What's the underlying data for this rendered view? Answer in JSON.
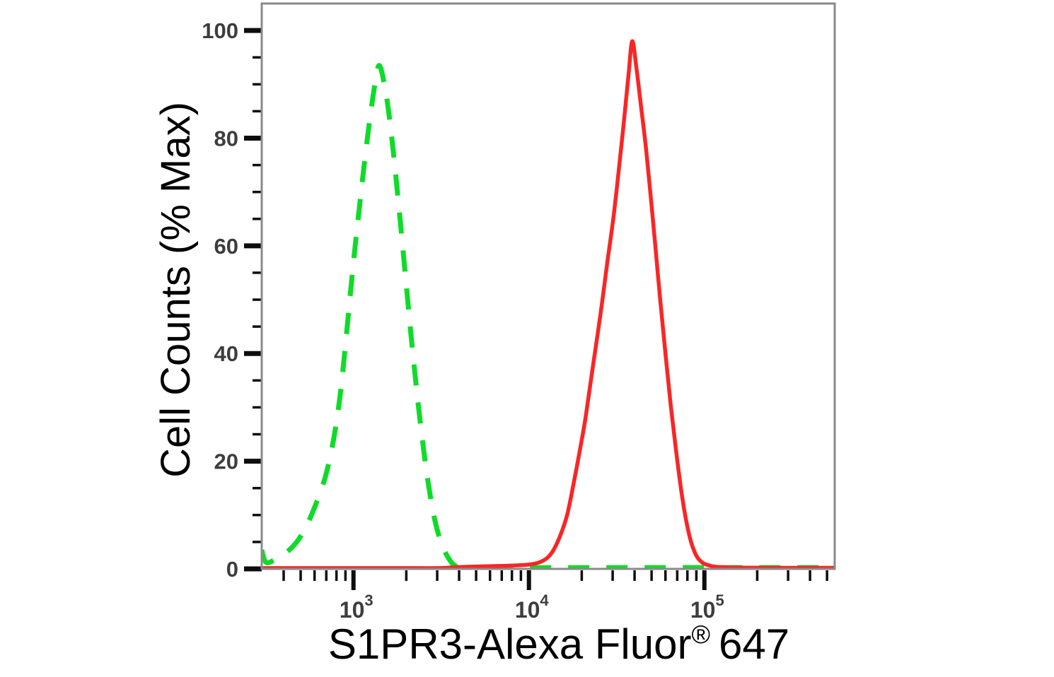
{
  "figure": {
    "background_color": "#ffffff",
    "frame_color": "#8a8a8a",
    "tick_color": "#0d0d0d",
    "tick_label_color": "#3d3d3d",
    "axis_label_color": "#000000"
  },
  "chart_data": {
    "type": "line",
    "subtype": "flow-cytometry-histogram-overlay",
    "title": "",
    "xlabel": {
      "full": "S1PR3-Alexa Fluor® 647",
      "main": "S1PR3-Alexa Fluor",
      "sup": "®",
      "suffix": "647"
    },
    "ylabel": "Cell Counts (% Max)",
    "x_scale": "log",
    "x_range": [
      300,
      553000
    ],
    "y_range": [
      0,
      105
    ],
    "grid": false,
    "legend_position": "none",
    "x_ticks_major": [
      {
        "value": 1000,
        "base": "10",
        "exp": "3"
      },
      {
        "value": 10000,
        "base": "10",
        "exp": "4"
      },
      {
        "value": 100000,
        "base": "10",
        "exp": "5"
      }
    ],
    "x_minor_decades": [
      2,
      3,
      4,
      5
    ],
    "y_ticks_major": [
      0,
      20,
      40,
      60,
      80,
      100
    ],
    "y_minor_step": 5,
    "series": [
      {
        "name": "green-dashed-histogram",
        "color": "#0edc28",
        "style": "dashed",
        "line_width": 7,
        "dash": [
          30,
          24
        ],
        "peak_x": 1400,
        "peak_y": 93.5,
        "points": [
          [
            300,
            3.5
          ],
          [
            318,
            1.2
          ],
          [
            360,
            1.8
          ],
          [
            420,
            3.2
          ],
          [
            480,
            5.2
          ],
          [
            540,
            8
          ],
          [
            610,
            12
          ],
          [
            690,
            17
          ],
          [
            770,
            24
          ],
          [
            845,
            33
          ],
          [
            915,
            44
          ],
          [
            1000,
            57
          ],
          [
            1080,
            67
          ],
          [
            1160,
            76
          ],
          [
            1245,
            84
          ],
          [
            1325,
            90
          ],
          [
            1400,
            93.5
          ],
          [
            1500,
            90
          ],
          [
            1600,
            84
          ],
          [
            1705,
            76
          ],
          [
            1830,
            66
          ],
          [
            1970,
            55
          ],
          [
            2120,
            44
          ],
          [
            2295,
            33
          ],
          [
            2470,
            24
          ],
          [
            2665,
            16
          ],
          [
            2910,
            9
          ],
          [
            3190,
            4.5
          ],
          [
            3510,
            1.8
          ],
          [
            3800,
            0.6
          ],
          [
            4300,
            0.25
          ],
          [
            100000,
            0.25
          ],
          [
            553000,
            0.25
          ]
        ]
      },
      {
        "name": "red-solid-histogram",
        "color": "#f92626",
        "style": "solid",
        "line_width": 5.5,
        "dash": null,
        "peak_x": 38800,
        "peak_y": 98,
        "points": [
          [
            300,
            0.15
          ],
          [
            2000,
            0.15
          ],
          [
            3000,
            0.15
          ],
          [
            3800,
            0.3
          ],
          [
            5000,
            0.45
          ],
          [
            7000,
            0.55
          ],
          [
            10000,
            0.8
          ],
          [
            12000,
            1.5
          ],
          [
            13500,
            3
          ],
          [
            15000,
            6
          ],
          [
            16500,
            10
          ],
          [
            18000,
            16
          ],
          [
            19500,
            22
          ],
          [
            21000,
            28
          ],
          [
            23000,
            37
          ],
          [
            25500,
            47
          ],
          [
            28000,
            57
          ],
          [
            30500,
            66
          ],
          [
            33000,
            76
          ],
          [
            35000,
            84
          ],
          [
            37000,
            92
          ],
          [
            38800,
            98
          ],
          [
            41000,
            93
          ],
          [
            43500,
            86
          ],
          [
            46500,
            78
          ],
          [
            49500,
            69
          ],
          [
            52500,
            60
          ],
          [
            56000,
            50
          ],
          [
            60000,
            40
          ],
          [
            64500,
            30
          ],
          [
            69500,
            21
          ],
          [
            75000,
            13
          ],
          [
            81000,
            7
          ],
          [
            87000,
            3.5
          ],
          [
            94000,
            1.6
          ],
          [
            105000,
            0.7
          ],
          [
            130000,
            0.3
          ],
          [
            250000,
            0.2
          ],
          [
            553000,
            0.2
          ]
        ]
      }
    ]
  }
}
